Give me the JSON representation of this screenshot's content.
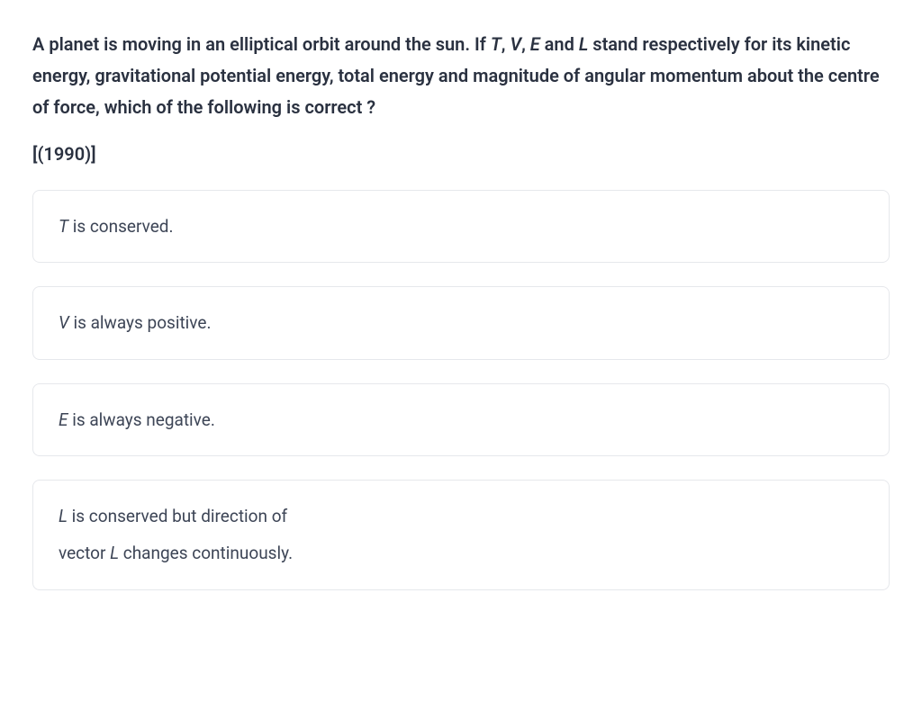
{
  "question": {
    "segments": [
      {
        "text": "A planet is moving in an elliptical orbit around the sun. If ",
        "italic": false
      },
      {
        "text": "T",
        "italic": true
      },
      {
        "text": ", ",
        "italic": false
      },
      {
        "text": "V",
        "italic": true
      },
      {
        "text": ", ",
        "italic": false
      },
      {
        "text": "E",
        "italic": true
      },
      {
        "text": " and ",
        "italic": false
      },
      {
        "text": "L",
        "italic": true
      },
      {
        "text": " stand respectively for its kinetic energy, gravitational potential energy, total energy and magnitude of angular momentum about the centre of force, which of the following is correct ?",
        "italic": false
      }
    ],
    "year_tag": "[(1990)]"
  },
  "options": [
    {
      "segments": [
        {
          "text": "T",
          "italic": true
        },
        {
          "text": " is conserved.",
          "italic": false
        }
      ]
    },
    {
      "segments": [
        {
          "text": "V",
          "italic": true
        },
        {
          "text": " is always positive.",
          "italic": false
        }
      ]
    },
    {
      "segments": [
        {
          "text": "E",
          "italic": true
        },
        {
          "text": " is always negative.",
          "italic": false
        }
      ]
    },
    {
      "segments": [
        {
          "text": "L",
          "italic": true
        },
        {
          "text": " is conserved but direction of",
          "italic": false
        }
      ],
      "segments2": [
        {
          "text": "vector ",
          "italic": false
        },
        {
          "text": "L",
          "italic": true
        },
        {
          "text": " changes continuously.",
          "italic": false
        }
      ]
    }
  ],
  "styles": {
    "background_color": "#ffffff",
    "text_color": "#2a3140",
    "option_text_color": "#3d4556",
    "option_border_color": "#e6e8ec",
    "option_border_radius": 8,
    "question_fontsize": 20,
    "option_fontsize": 19,
    "year_fontsize": 20
  }
}
